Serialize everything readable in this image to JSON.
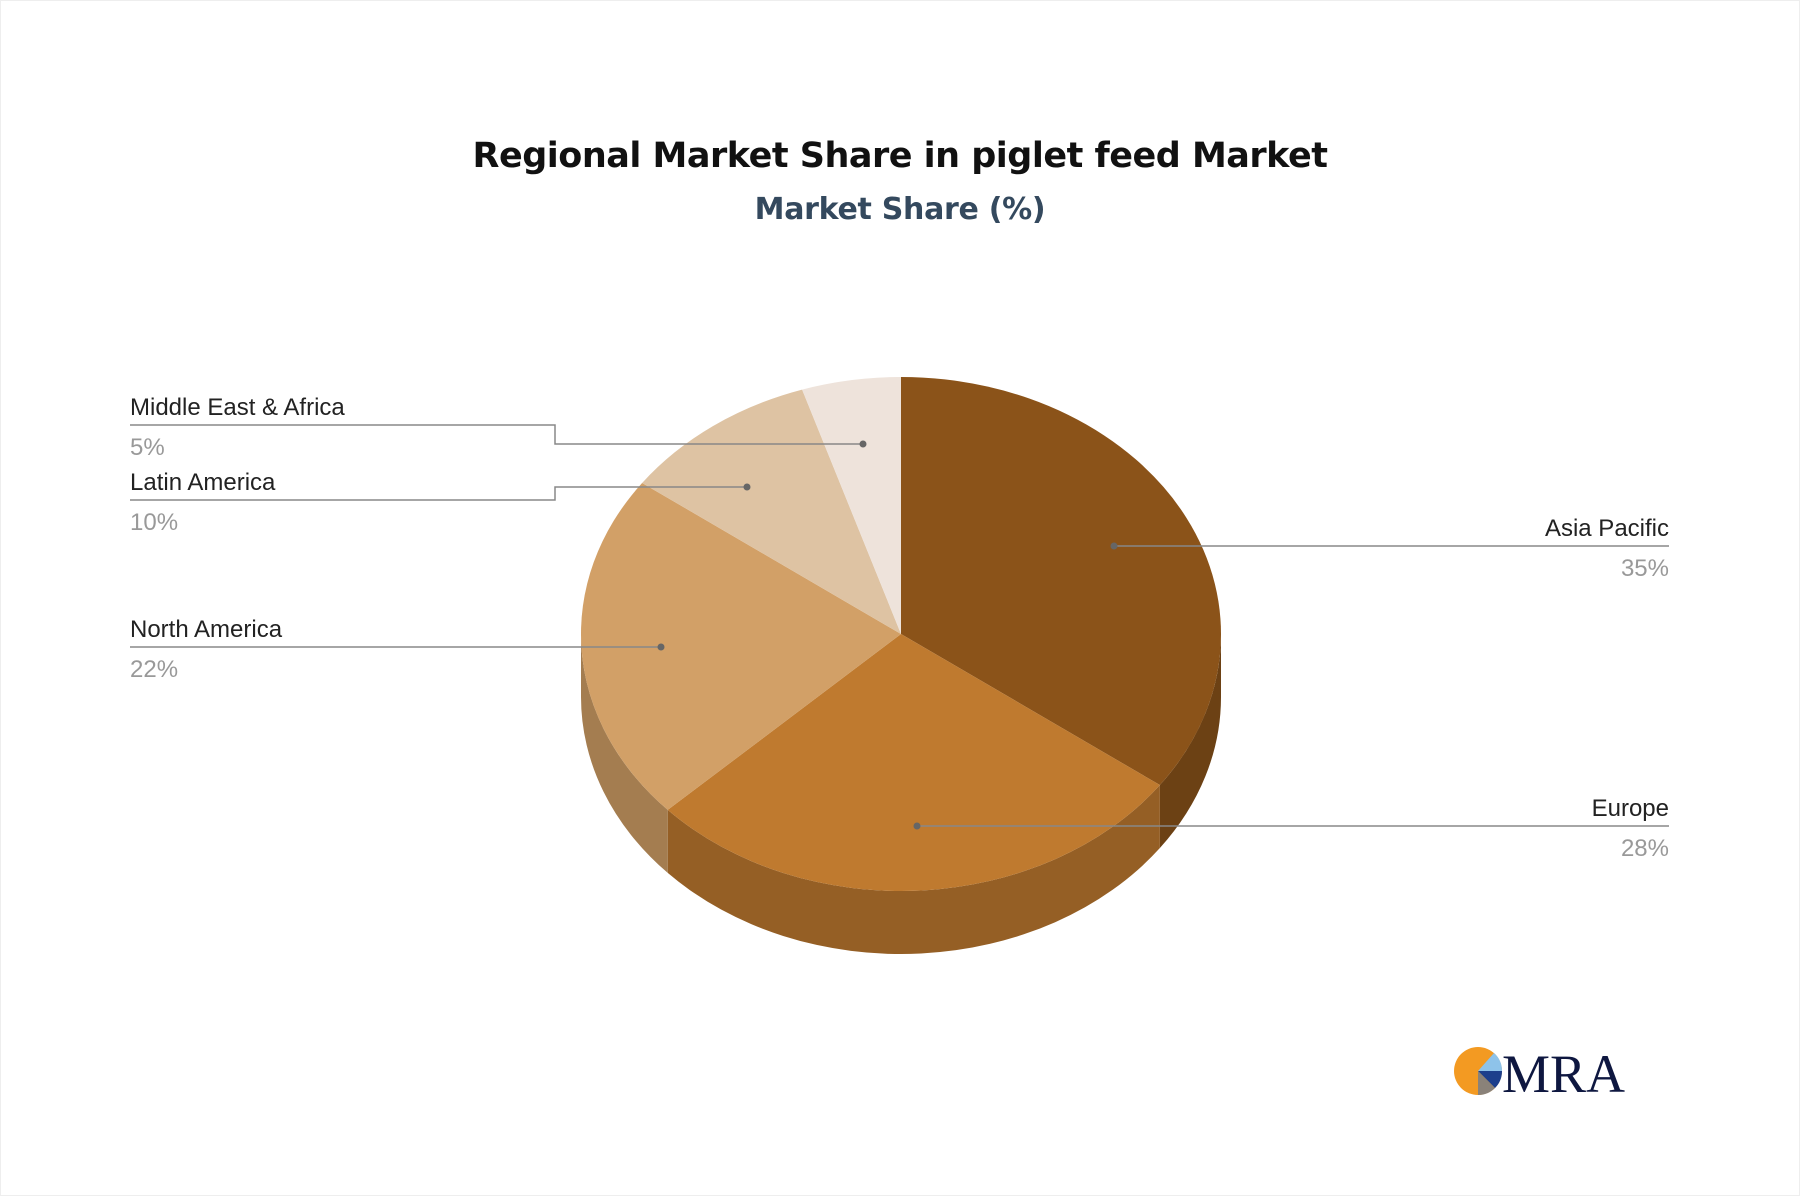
{
  "chart_data": {
    "type": "pie",
    "style": "3d",
    "title": "Regional Market Share in piglet feed Market",
    "subtitle": "Market Share (%)",
    "slices": [
      {
        "label": "Asia Pacific",
        "value": 35,
        "display": "35%",
        "color": "#8B5319"
      },
      {
        "label": "Europe",
        "value": 28,
        "display": "28%",
        "color": "#BF7A2F"
      },
      {
        "label": "North America",
        "value": 22,
        "display": "22%",
        "color": "#D2A067"
      },
      {
        "label": "Latin America",
        "value": 10,
        "display": "10%",
        "color": "#DEC3A3"
      },
      {
        "label": "Middle East & Africa",
        "value": 5,
        "display": "5%",
        "color": "#EEE3DB"
      }
    ],
    "legend": "none"
  },
  "logo": {
    "text": "MRA"
  }
}
